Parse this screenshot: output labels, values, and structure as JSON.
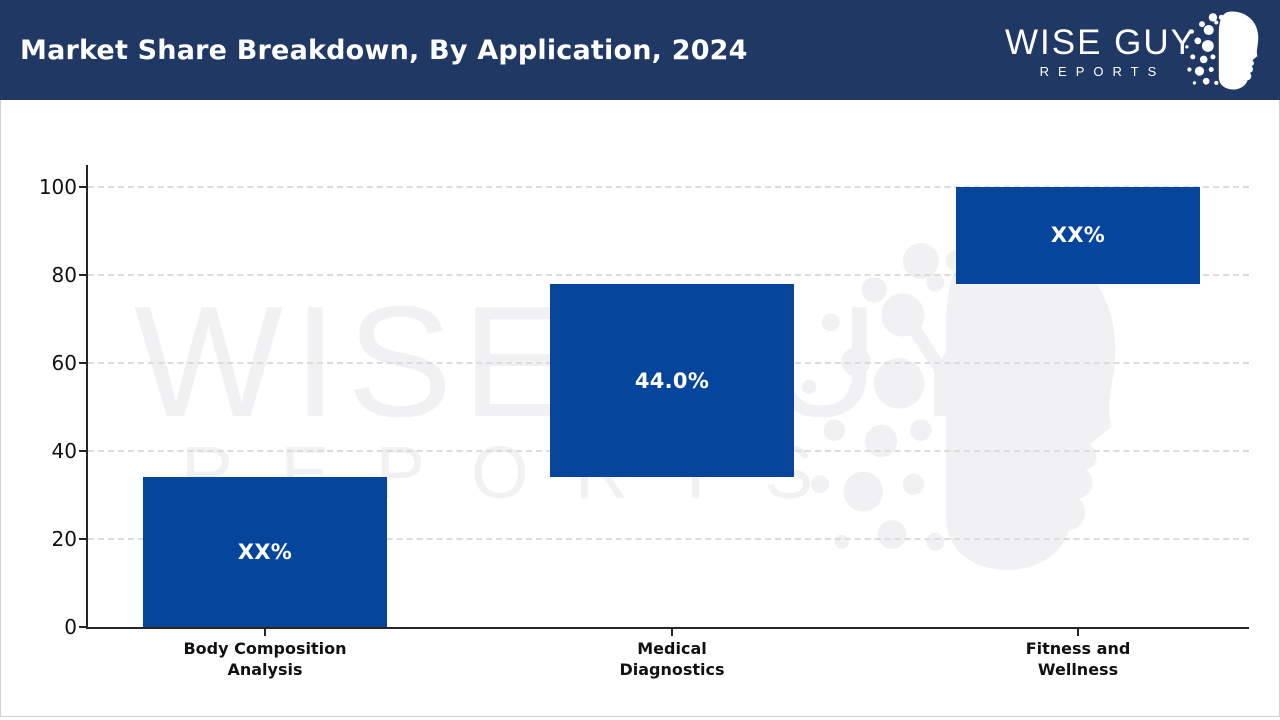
{
  "header": {
    "title": "Market Share Breakdown, By Application, 2024",
    "logo_brand": "WISE GUY",
    "logo_sub": "REPORTS"
  },
  "watermark": {
    "line1": "WISE GUY",
    "line2": "REPORTS"
  },
  "colors": {
    "header_bg": "#1f3864",
    "bar_blue": "#05459c",
    "grid_gray": "#dcdcdc",
    "axis_dark": "#262626",
    "watermark_gray": "#f1f1f4"
  },
  "chart_data": {
    "type": "bar",
    "subtype": "floating-range-waterfall",
    "title": "Market Share Breakdown, By Application, 2024",
    "categories": [
      "Body Composition Analysis",
      "Medical Diagnostics",
      "Fitness and Wellness"
    ],
    "category_lines": [
      [
        "Body Composition",
        "Analysis"
      ],
      [
        "Medical",
        "Diagnostics"
      ],
      [
        "Fitness and",
        "Wellness"
      ]
    ],
    "bars": [
      {
        "category": "Body Composition Analysis",
        "start": 0,
        "end": 34,
        "label": "XX%"
      },
      {
        "category": "Medical Diagnostics",
        "start": 34,
        "end": 78,
        "label": "44.0%"
      },
      {
        "category": "Fitness and Wellness",
        "start": 78,
        "end": 100,
        "label": "XX%"
      }
    ],
    "segment_values": [
      34,
      44,
      22
    ],
    "yticks": [
      0,
      20,
      40,
      60,
      80,
      100
    ],
    "ylim": [
      0,
      105
    ],
    "xlabel": "",
    "ylabel": "",
    "legend": null,
    "grid": "horizontal-dashed",
    "bar_color": "#05459c",
    "value_label_color": "#ffffff"
  }
}
